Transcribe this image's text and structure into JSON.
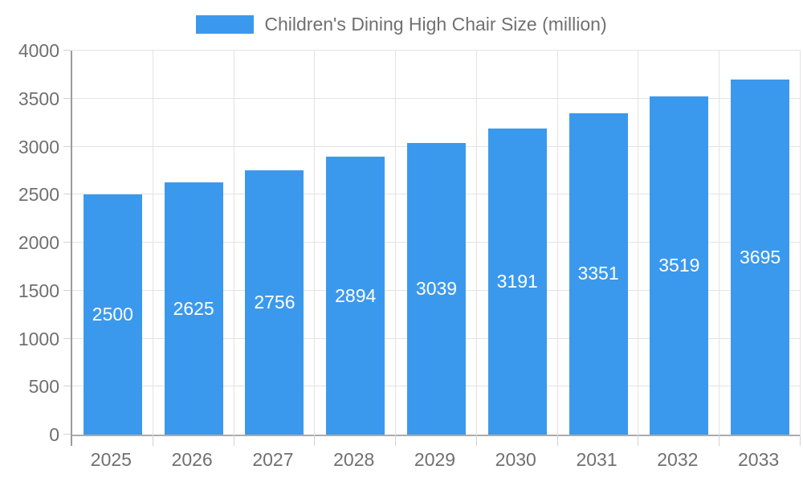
{
  "chart_data": {
    "type": "bar",
    "title": "Children's Dining High Chair Size (million)",
    "legend": {
      "label": "Children's Dining High Chair Size (million)",
      "position": "top"
    },
    "categories": [
      "2025",
      "2026",
      "2027",
      "2028",
      "2029",
      "2030",
      "2031",
      "2032",
      "2033"
    ],
    "values": [
      2500,
      2625,
      2756,
      2894,
      3039,
      3191,
      3351,
      3519,
      3695
    ],
    "xlabel": "",
    "ylabel": "",
    "ylim": [
      0,
      4000
    ],
    "yticks": [
      0,
      500,
      1000,
      1500,
      2000,
      2500,
      3000,
      3500,
      4000
    ],
    "grid": true,
    "colors": {
      "bar": "#3B99ED",
      "value_label": "#FFFFFF",
      "axis_text": "#707070",
      "gridline": "#E3E3E3",
      "tick": "#D2D2D2",
      "y_axis_line": "#9B9B9B",
      "x_axis_line": "#ABABAB",
      "background": "#FFFFFF"
    }
  }
}
